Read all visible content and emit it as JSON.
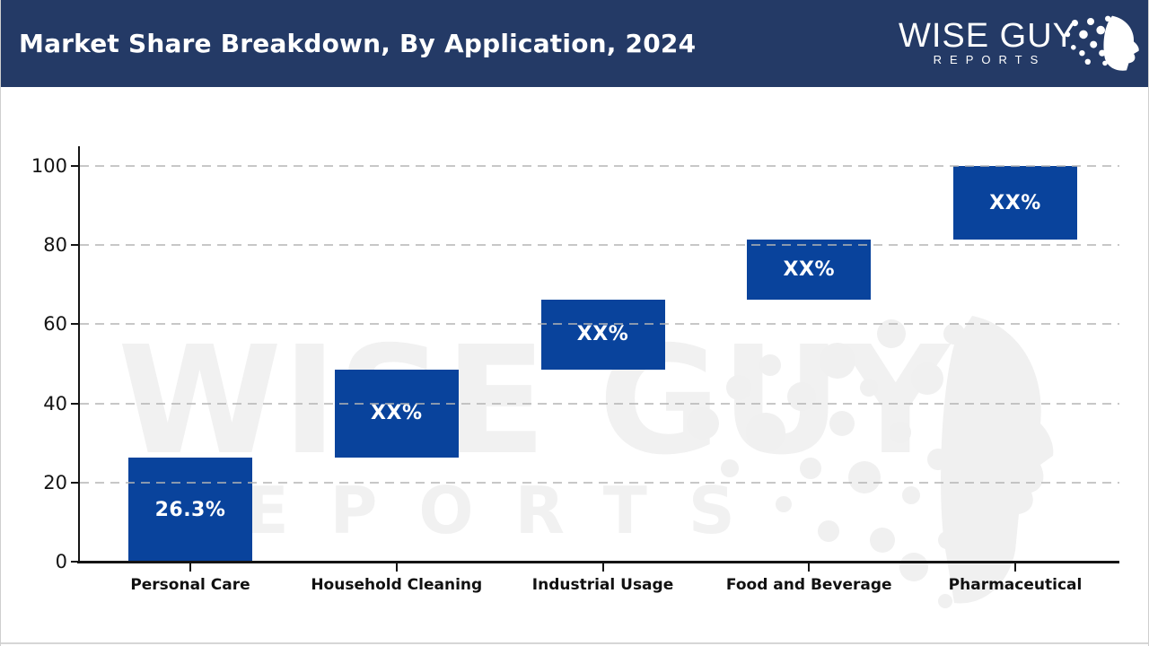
{
  "header": {
    "title": "Market Share Breakdown, By Application, 2024",
    "logo": {
      "wordmark": "WISE GUY",
      "subtext": "REPORTS"
    }
  },
  "watermark": {
    "wordmark": "WISE GUY",
    "subtext": "REPORTS"
  },
  "chart_data": {
    "type": "bar",
    "subtype": "waterfall",
    "title": "Market Share Breakdown, By Application, 2024",
    "categories": [
      "Personal Care",
      "Household Cleaning",
      "Industrial Usage",
      "Food and Beverage",
      "Pharmaceutical"
    ],
    "segments": [
      {
        "category": "Personal Care",
        "start": 0,
        "end": 26.3,
        "label": "26.3%"
      },
      {
        "category": "Household Cleaning",
        "start": 26.3,
        "end": 48.6,
        "label": "XX%"
      },
      {
        "category": "Industrial Usage",
        "start": 48.6,
        "end": 66.3,
        "label": "XX%"
      },
      {
        "category": "Food and Beverage",
        "start": 66.3,
        "end": 81.4,
        "label": "XX%"
      },
      {
        "category": "Pharmaceutical",
        "start": 81.4,
        "end": 100,
        "label": "XX%"
      }
    ],
    "ylim": [
      0,
      100
    ],
    "yticks": [
      0,
      20,
      40,
      60,
      80,
      100
    ],
    "xlabel": "",
    "ylabel": "",
    "grid": true,
    "legend": false,
    "bar_color": "#09439C",
    "bar_label_color": "#FFFFFF"
  },
  "colors": {
    "header_bg": "#243A66",
    "bar": "#09439C",
    "axis": "#141414",
    "gridline": "#BDBDBD",
    "watermark": "#F1F1F1",
    "page_border": "#CFCFCF"
  }
}
